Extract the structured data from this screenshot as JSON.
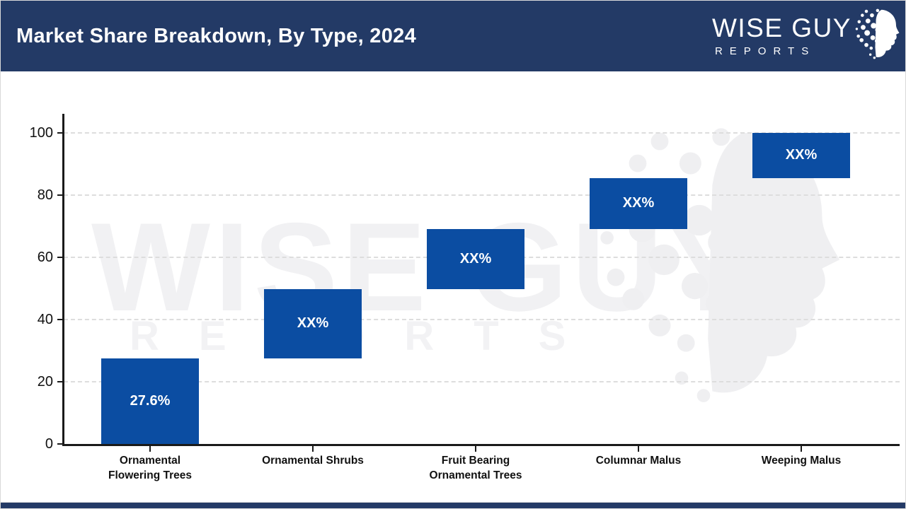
{
  "header": {
    "title": "Market Share Breakdown, By Type, 2024",
    "bg_color": "#233a66",
    "logo": {
      "line1": "WISE GUY",
      "line2": "REPORTS"
    }
  },
  "watermark": {
    "line1": "WISE GUY",
    "line2": "REPORTS"
  },
  "footer": {
    "bar_color": "#233a66"
  },
  "chart_data": {
    "type": "bar",
    "variant": "waterfall",
    "title": "Market Share Breakdown, By Type, 2024",
    "categories": [
      "Ornamental\nFlowering Trees",
      "Ornamental Shrubs",
      "Fruit Bearing\nOrnamental Trees",
      "Columnar Malus",
      "Weeping Malus"
    ],
    "segments": [
      {
        "start": 0,
        "end": 27.6,
        "label": "27.6%"
      },
      {
        "start": 27.6,
        "end": 49.8,
        "label": "XX%"
      },
      {
        "start": 49.8,
        "end": 69.1,
        "label": "XX%"
      },
      {
        "start": 69.1,
        "end": 85.5,
        "label": "XX%"
      },
      {
        "start": 85.5,
        "end": 100,
        "label": "XX%"
      }
    ],
    "segment_sizes": [
      27.6,
      22.2,
      19.3,
      16.4,
      14.5
    ],
    "yticks": [
      0,
      20,
      40,
      60,
      80,
      100
    ],
    "ylim": [
      0,
      100
    ],
    "grid": "horizontal-dashed",
    "legend": "none",
    "bar_color": "#0b4da2",
    "bar_label_color": "#ffffff",
    "gridline_color": "#dddddd",
    "axis_color": "#1a1a1a"
  }
}
